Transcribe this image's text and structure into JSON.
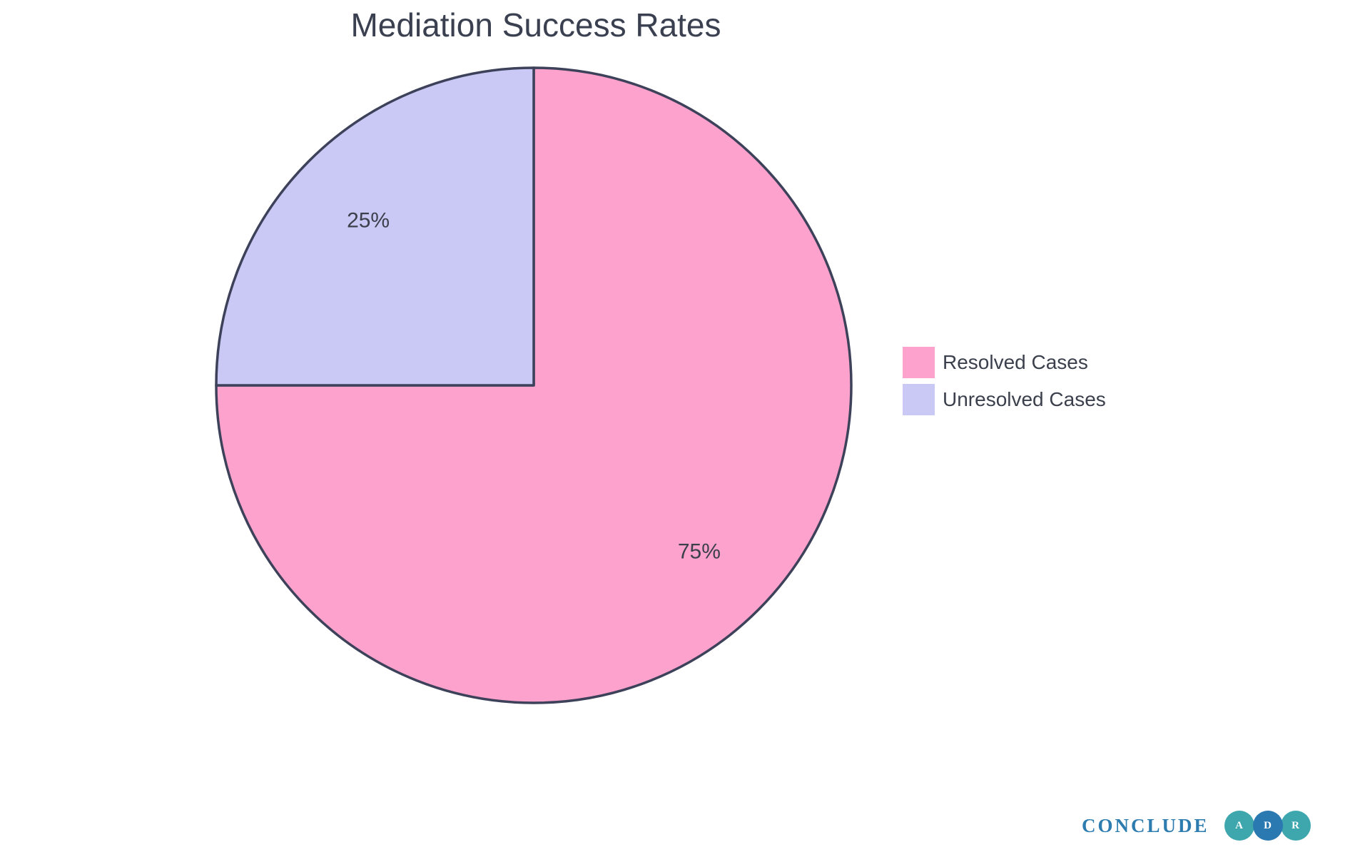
{
  "chart_data": {
    "type": "pie",
    "title": "Mediation Success Rates",
    "labels": [
      "Resolved Cases",
      "Unresolved Cases"
    ],
    "values": [
      75,
      25
    ],
    "slice_labels": [
      "75%",
      "25%"
    ],
    "colors": [
      "#FCA2CC",
      "#CAC9F5"
    ],
    "stroke_color": "#3D425A",
    "label_color": "#3B404C",
    "start_angle": 0,
    "direction": "clockwise",
    "legend_position": "right",
    "background": "#FFFFFF"
  },
  "legend": {
    "items": [
      {
        "label": "Resolved Cases",
        "color": "#FCA2CC"
      },
      {
        "label": "Unresolved Cases",
        "color": "#CAC9F5"
      }
    ]
  },
  "branding": {
    "wordmark": "CONCLUDE",
    "wordmark_color": "#2C7CB0",
    "badges": [
      {
        "letter": "A",
        "color": "#3EA7AE"
      },
      {
        "letter": "D",
        "color": "#2A79B0"
      },
      {
        "letter": "R",
        "color": "#3EA7AE"
      }
    ]
  }
}
